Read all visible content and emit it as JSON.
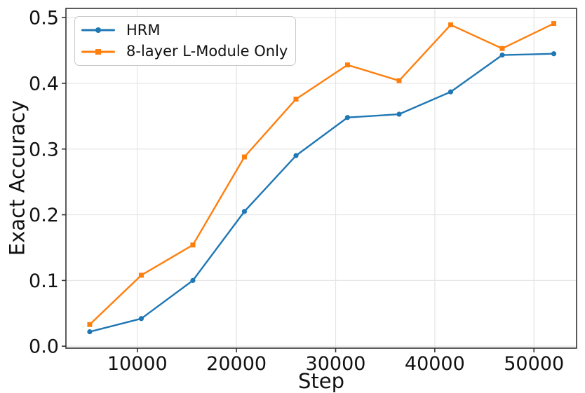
{
  "figure": {
    "background": "#ffffff"
  },
  "chart_data": {
    "type": "line",
    "title": "",
    "xlabel": "Step",
    "ylabel": "Exact Accuracy",
    "x": [
      5200,
      10400,
      15600,
      20800,
      26000,
      31200,
      36400,
      41600,
      46800,
      52000
    ],
    "series": [
      {
        "name": "HRM",
        "color": "#1f77b4",
        "marker": "circle",
        "values": [
          0.022,
          0.042,
          0.1,
          0.205,
          0.29,
          0.348,
          0.353,
          0.387,
          0.443,
          0.445
        ]
      },
      {
        "name": "8-layer L-Module Only",
        "color": "#ff7f0e",
        "marker": "square",
        "values": [
          0.033,
          0.108,
          0.154,
          0.288,
          0.376,
          0.428,
          0.404,
          0.489,
          0.453,
          0.491
        ]
      }
    ],
    "xlim": [
      2800,
      54300
    ],
    "ylim": [
      -0.003,
      0.514
    ],
    "xticks": {
      "values": [
        10000,
        20000,
        30000,
        40000,
        50000
      ],
      "labels": [
        "10000",
        "20000",
        "30000",
        "40000",
        "50000"
      ]
    },
    "yticks": {
      "values": [
        0.0,
        0.1,
        0.2,
        0.3,
        0.4,
        0.5
      ],
      "labels": [
        "0.0",
        "0.1",
        "0.2",
        "0.3",
        "0.4",
        "0.5"
      ]
    },
    "grid": true,
    "grid_color": "#e5e5e5",
    "spine_color": "#333333",
    "text_color": "#111111",
    "legend_position": "upper left"
  }
}
